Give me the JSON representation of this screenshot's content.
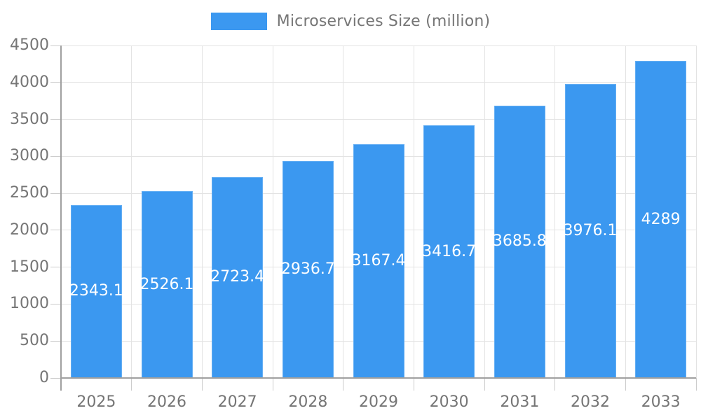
{
  "page": {
    "background_color": "#ffffff"
  },
  "legend": {
    "label": "Microservices Size (million)",
    "swatch_color": "#3b98f0",
    "position": "top-center"
  },
  "chart_data": {
    "type": "bar",
    "title": "Microservices Size (million)",
    "categories": [
      "2025",
      "2026",
      "2027",
      "2028",
      "2029",
      "2030",
      "2031",
      "2032",
      "2033"
    ],
    "values": [
      2343.1,
      2526.1,
      2723.4,
      2936.7,
      3167.4,
      3416.7,
      3685.8,
      3976.1,
      4289
    ],
    "data_labels": [
      "2343.1",
      "2526.1",
      "2723.4",
      "2936.7",
      "3167.4",
      "3416.7",
      "3685.8",
      "3976.1",
      "4289"
    ],
    "series": [
      {
        "name": "Microservices Size (million)",
        "values": [
          2343.1,
          2526.1,
          2723.4,
          2936.7,
          3167.4,
          3416.7,
          3685.8,
          3976.1,
          4289
        ]
      }
    ],
    "xlabel": "",
    "ylabel": "",
    "ylim": [
      0,
      4500
    ],
    "yticks": [
      0,
      500,
      1000,
      1500,
      2000,
      2500,
      3000,
      3500,
      4000,
      4500
    ],
    "grid": true,
    "legend_position": "top",
    "bar_color": "#3b98f0",
    "bar_border_color": "#64aef3",
    "data_label_color": "#ffffff",
    "axis_text_color": "#757575",
    "grid_color": "#e3e3e3",
    "tick_color": "#cccccc",
    "axis_line_color": "#a0a0a0"
  }
}
